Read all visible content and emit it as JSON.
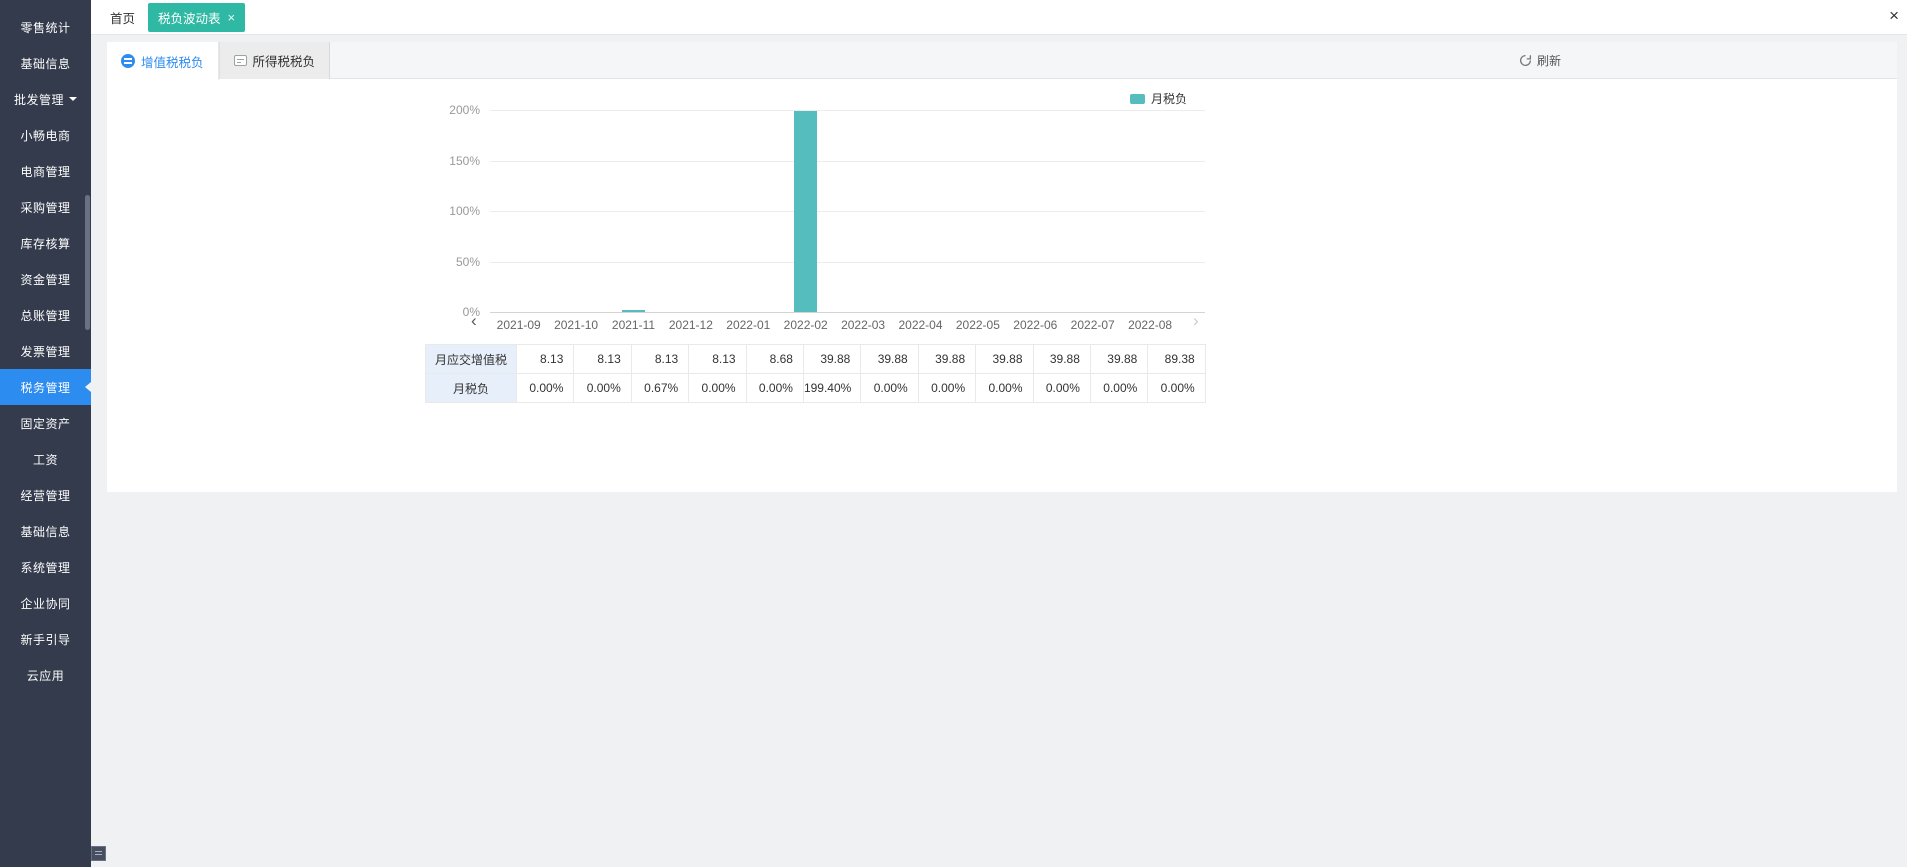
{
  "window": {
    "close": "×"
  },
  "colors": {
    "sidebar_bg": "#343b4d",
    "active_blue": "#2d8cf0",
    "tab_teal": "#2fb8a3",
    "bar_teal": "#55bdbe",
    "table_label_bg": "#e7effa"
  },
  "sidebar": {
    "items": [
      {
        "label": "零售统计"
      },
      {
        "label": "基础信息"
      },
      {
        "label": "批发管理",
        "caret": true
      },
      {
        "label": "小畅电商"
      },
      {
        "label": "电商管理"
      },
      {
        "label": "采购管理"
      },
      {
        "label": "库存核算"
      },
      {
        "label": "资金管理"
      },
      {
        "label": "总账管理"
      },
      {
        "label": "发票管理"
      },
      {
        "label": "税务管理",
        "active": true
      },
      {
        "label": "固定资产"
      },
      {
        "label": "工资"
      },
      {
        "label": "经营管理"
      },
      {
        "label": "基础信息"
      },
      {
        "label": "系统管理"
      },
      {
        "label": "企业协同"
      },
      {
        "label": "新手引导"
      },
      {
        "label": "云应用"
      }
    ]
  },
  "topbar": {
    "home_tab": "首页",
    "active_tab": "税负波动表",
    "tab_close": "×"
  },
  "content": {
    "tabs": [
      {
        "label": "增值税税负",
        "active": true,
        "icon": "vat-icon"
      },
      {
        "label": "所得税税负",
        "active": false,
        "icon": "income-tax-icon"
      }
    ],
    "refresh_label": "刷新"
  },
  "chart_data": {
    "type": "bar",
    "title": "",
    "legend": [
      "月税负"
    ],
    "legend_position": "top-right",
    "grid": true,
    "categories": [
      "2021-09",
      "2021-10",
      "2021-11",
      "2021-12",
      "2022-01",
      "2022-02",
      "2022-03",
      "2022-04",
      "2022-05",
      "2022-06",
      "2022-07",
      "2022-08"
    ],
    "series": [
      {
        "name": "月税负",
        "values": [
          0.0,
          0.0,
          0.67,
          0.0,
          0.0,
          199.4,
          0.0,
          0.0,
          0.0,
          0.0,
          0.0,
          0.0
        ]
      }
    ],
    "ylim": [
      0,
      200
    ],
    "yticks": [
      "0%",
      "50%",
      "100%",
      "150%",
      "200%"
    ],
    "bar_color": "#55bdbe",
    "nav": {
      "prev": "‹",
      "next": "›"
    }
  },
  "table": {
    "rows": [
      {
        "label": "月应交增值税",
        "values": [
          "8.13",
          "8.13",
          "8.13",
          "8.13",
          "8.68",
          "39.88",
          "39.88",
          "39.88",
          "39.88",
          "39.88",
          "39.88",
          "89.38"
        ]
      },
      {
        "label": "月税负",
        "values": [
          "0.00%",
          "0.00%",
          "0.67%",
          "0.00%",
          "0.00%",
          "199.40%",
          "0.00%",
          "0.00%",
          "0.00%",
          "0.00%",
          "0.00%",
          "0.00%"
        ]
      }
    ]
  }
}
